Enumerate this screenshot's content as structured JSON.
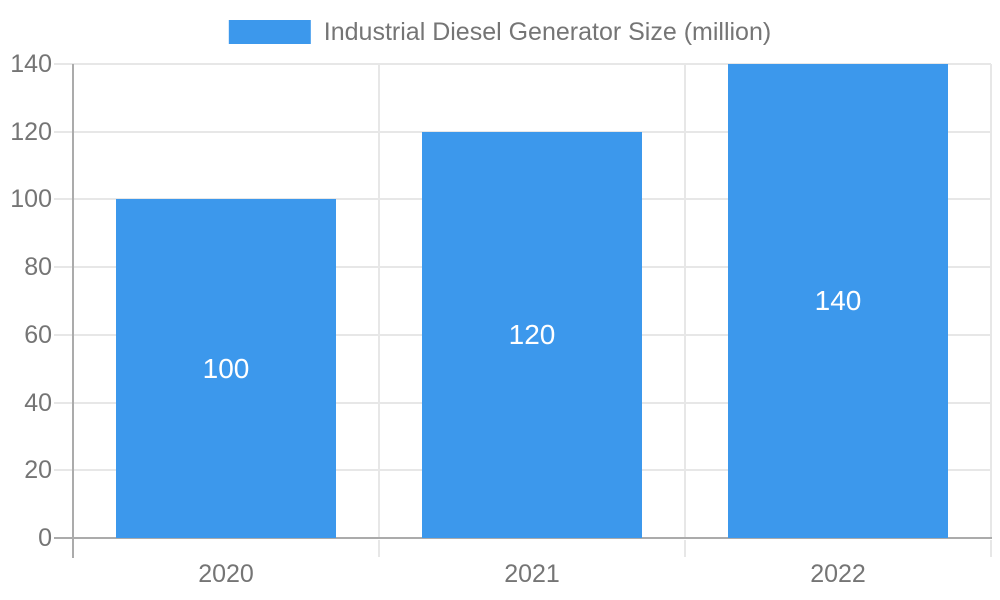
{
  "chart_data": {
    "type": "bar",
    "title": "Industrial Diesel Generator Size (million)",
    "legend": {
      "label": "Industrial Diesel Generator Size (million)",
      "position": "top-center"
    },
    "categories": [
      "2020",
      "2021",
      "2022"
    ],
    "series": [
      {
        "name": "Industrial Diesel Generator Size (million)",
        "values": [
          100,
          120,
          140
        ]
      }
    ],
    "data_labels": [
      "100",
      "120",
      "140"
    ],
    "xlabel": "",
    "ylabel": "",
    "ylim": [
      0,
      140
    ],
    "ytick_step": 20,
    "yticks": [
      0,
      20,
      40,
      60,
      80,
      100,
      120,
      140
    ],
    "grid": true,
    "legend_shown": true,
    "colors": {
      "bar": "#3C98EC",
      "axis_text": "#757575",
      "legend_text": "#757575",
      "gridline": "#E7E7E7",
      "axis_line": "#ABABAB",
      "data_label": "#FFFFFF",
      "background": "#FFFFFF"
    }
  }
}
